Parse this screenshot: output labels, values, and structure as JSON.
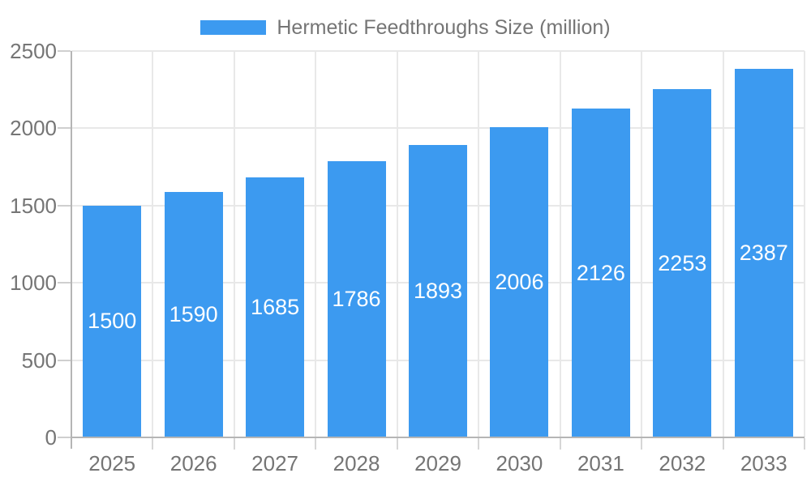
{
  "legend": {
    "label": "Hermetic Feedthroughs Size (million)"
  },
  "colors": {
    "bar": "#3C9AF0",
    "axis_line": "#b5b5b5",
    "gridline": "#e8e8e8",
    "tick": "#cfcfcf",
    "axis_text": "#757575",
    "value_label_text": "#ffffff",
    "background": "#ffffff"
  },
  "chart_data": {
    "type": "bar",
    "title": "Hermetic Feedthroughs Size (million)",
    "series_name": "Hermetic Feedthroughs Size (million)",
    "categories": [
      "2025",
      "2026",
      "2027",
      "2028",
      "2029",
      "2030",
      "2031",
      "2032",
      "2033"
    ],
    "values": [
      1500,
      1590,
      1685,
      1786,
      1893,
      2006,
      2126,
      2253,
      2387
    ],
    "xlabel": "",
    "ylabel": "",
    "ylim": [
      0,
      2500
    ],
    "yticks": [
      0,
      500,
      1000,
      1500,
      2000,
      2500
    ],
    "grid": true,
    "legend_position": "top",
    "value_labels_position": "inside-center"
  }
}
